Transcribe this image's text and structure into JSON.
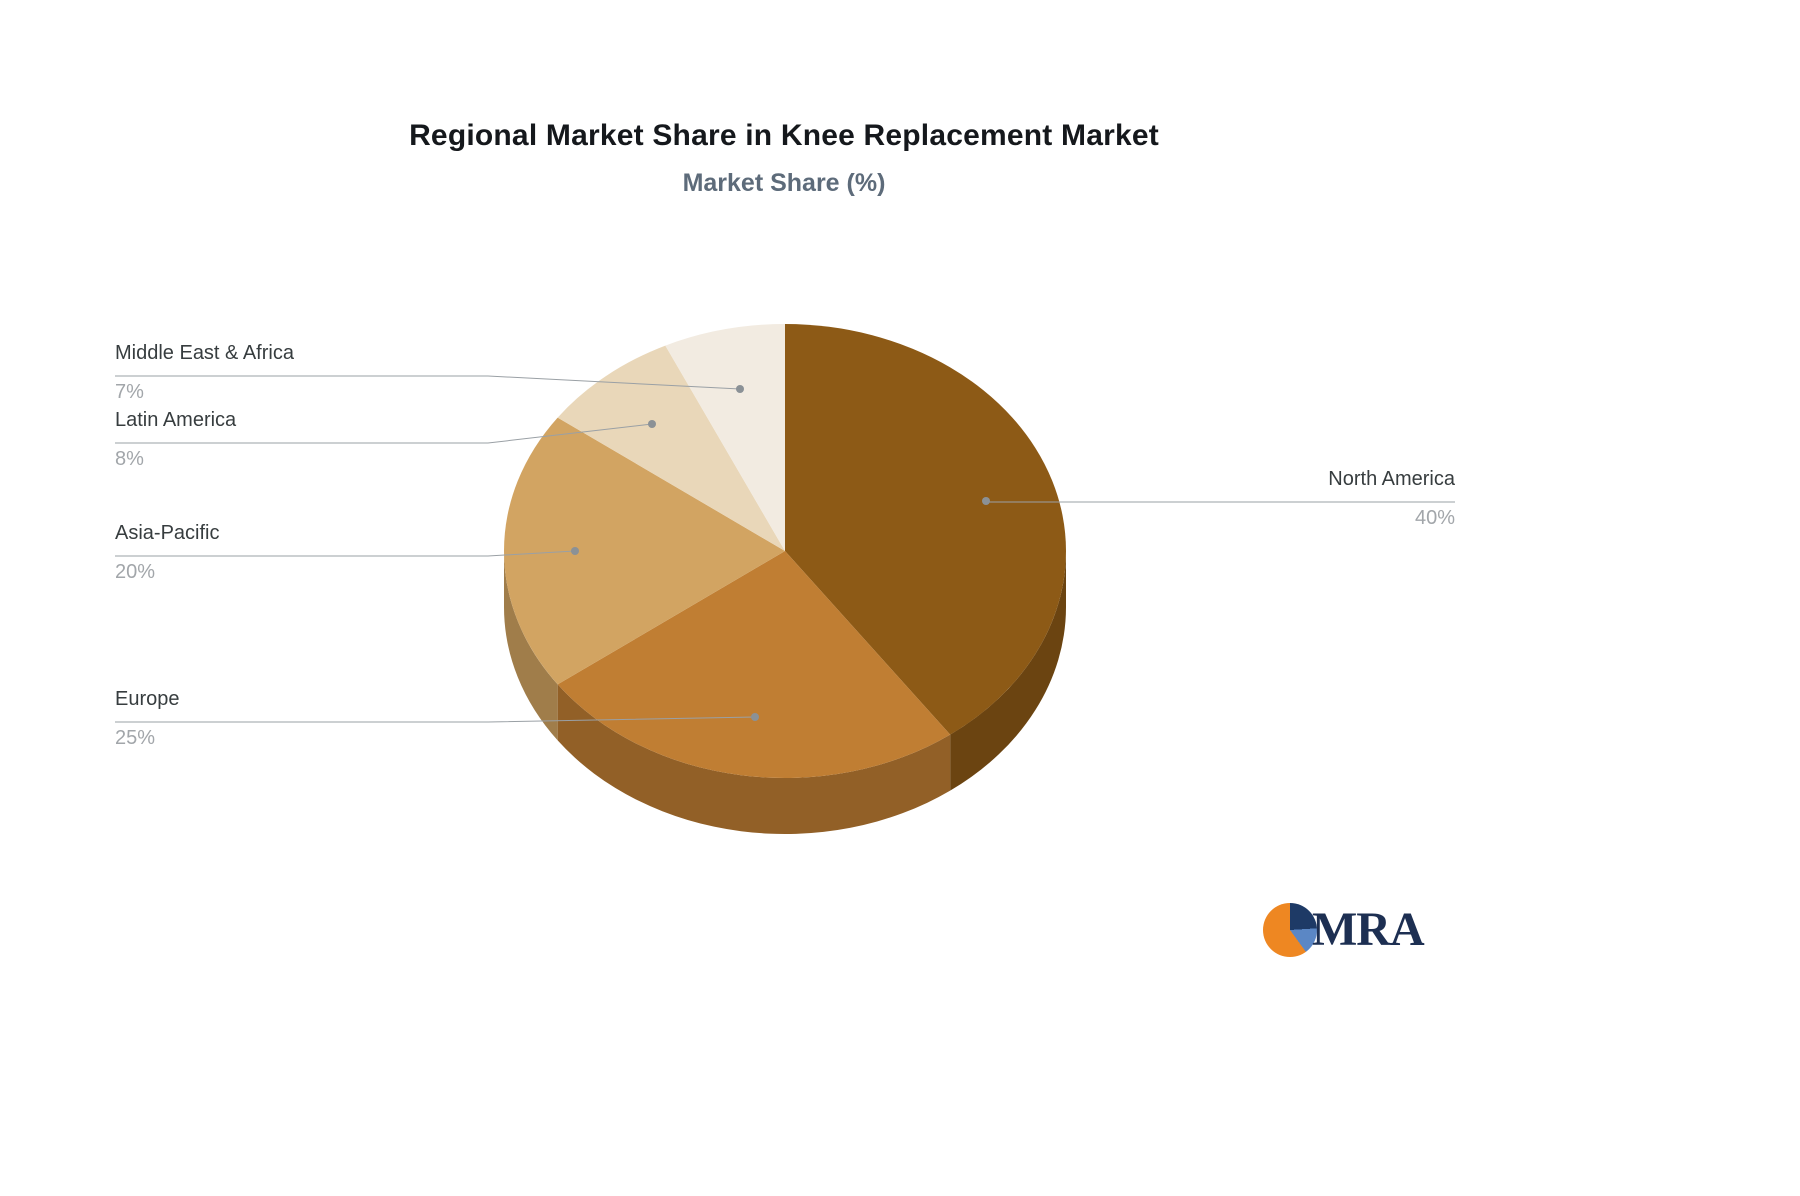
{
  "chart_data": {
    "type": "pie",
    "title": "Regional Market Share in Knee Replacement Market",
    "subtitle": "Market Share (%)",
    "unit": "%",
    "categories": [
      "North America",
      "Europe",
      "Asia-Pacific",
      "Latin America",
      "Middle East & Africa"
    ],
    "values": [
      40,
      25,
      20,
      8,
      7
    ],
    "colors": [
      "#8d5a16",
      "#c07e33",
      "#d2a462",
      "#e9d7b9",
      "#f2ebe1"
    ],
    "style": "3d",
    "start_angle_deg": 0,
    "direction": "clockwise",
    "legend_position": "none",
    "label_style": "leader-lines"
  },
  "logo": {
    "text": "MRA",
    "colors": {
      "orange": "#ee8722",
      "navy": "#1e3a66",
      "blue": "#5b87c5",
      "text": "#1d2f52"
    }
  }
}
